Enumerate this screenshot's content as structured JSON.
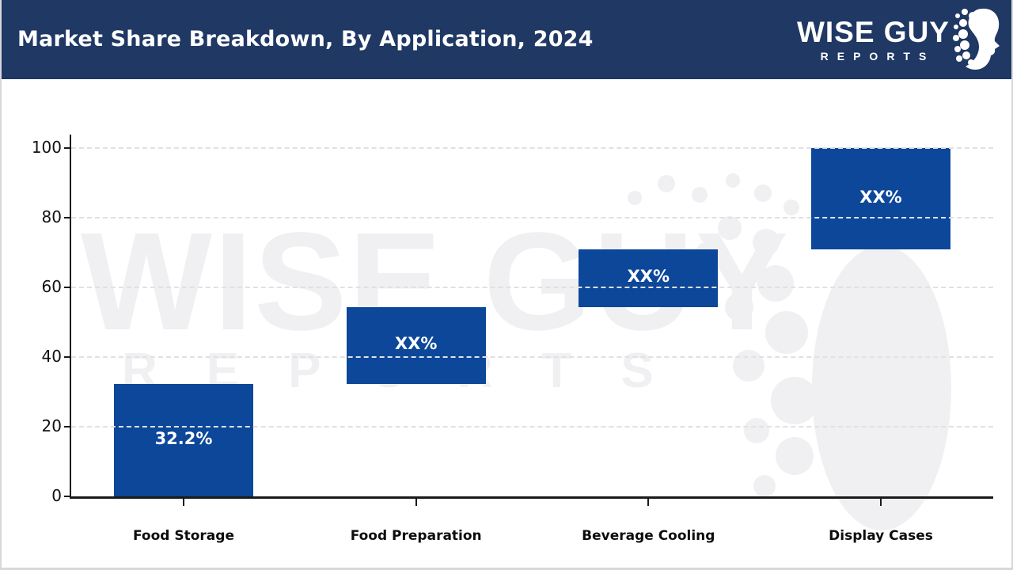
{
  "header": {
    "title": "Market Share Breakdown, By Application, 2024",
    "bg_color": "#1f3864",
    "logo": {
      "line1": "WISE GUY",
      "line2": "REPORTS"
    }
  },
  "watermark": {
    "line1": "WISE GUY",
    "line2": "REPORTS"
  },
  "chart_data": {
    "type": "bar",
    "subtype": "waterfall",
    "title": "Market Share Breakdown, By Application, 2024",
    "categories": [
      "Food Storage",
      "Food Preparation",
      "Beverage Cooling",
      "Display Cases"
    ],
    "segments": [
      {
        "category": "Food Storage",
        "start": 0,
        "end": 32.2,
        "label": "32.2%"
      },
      {
        "category": "Food Preparation",
        "start": 32.2,
        "end": 54.4,
        "label": "XX%"
      },
      {
        "category": "Beverage Cooling",
        "start": 54.4,
        "end": 71.0,
        "label": "XX%"
      },
      {
        "category": "Display Cases",
        "start": 71.0,
        "end": 100,
        "label": "XX%"
      }
    ],
    "xlabel": "",
    "ylabel": "",
    "ylim": [
      0,
      100
    ],
    "yticks": [
      0,
      20,
      40,
      60,
      80,
      100
    ],
    "grid": "horizontal-dashed",
    "legend": "none",
    "bar_color": "#0c4799",
    "bar_label_color": "#ffffff",
    "axis_color": "#1a1a1a"
  }
}
